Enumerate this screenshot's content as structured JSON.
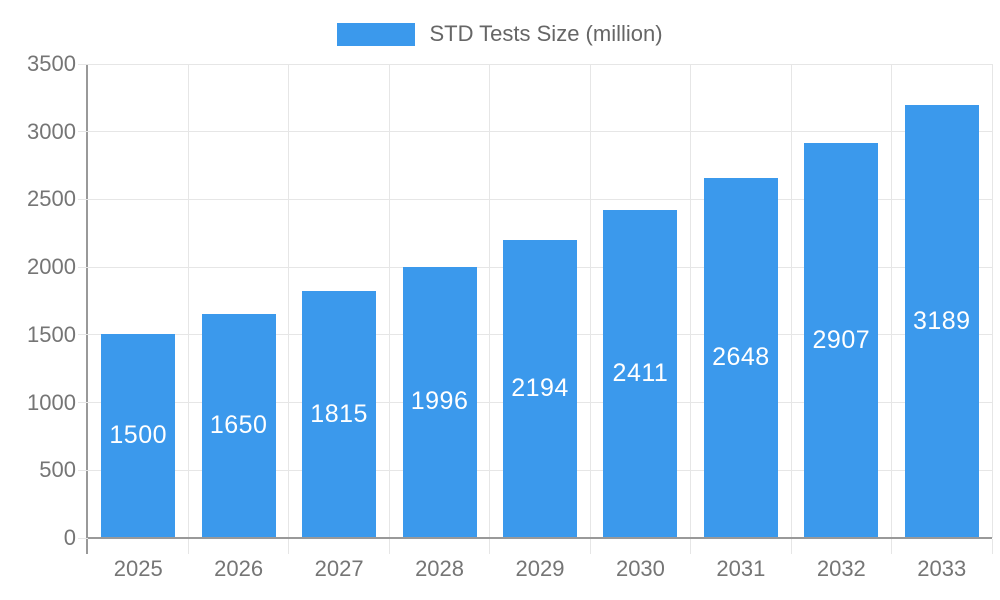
{
  "legend": {
    "label": "STD Tests Size (million)"
  },
  "chart_data": {
    "type": "bar",
    "title": "STD Tests Size (million)",
    "categories": [
      "2025",
      "2026",
      "2027",
      "2028",
      "2029",
      "2030",
      "2031",
      "2032",
      "2033"
    ],
    "values": [
      1500,
      1650,
      1815,
      1996,
      2194,
      2411,
      2648,
      2907,
      3189
    ],
    "series": [
      {
        "name": "STD Tests Size (million)",
        "values": [
          1500,
          1650,
          1815,
          1996,
          2194,
          2411,
          2648,
          2907,
          3189
        ]
      }
    ],
    "xlabel": "",
    "ylabel": "",
    "ylim": [
      0,
      3500
    ],
    "yticks": [
      0,
      500,
      1000,
      1500,
      2000,
      2500,
      3000,
      3500
    ],
    "grid": true,
    "legend_position": "top-center",
    "bar_labels_inside": true,
    "colors": {
      "bar": "#3B99EC",
      "bar_label": "#FFFFFF",
      "axis_text": "#757575",
      "legend_text": "#666666",
      "gridline": "#E6E6E6",
      "axis_line": "#999999"
    }
  }
}
